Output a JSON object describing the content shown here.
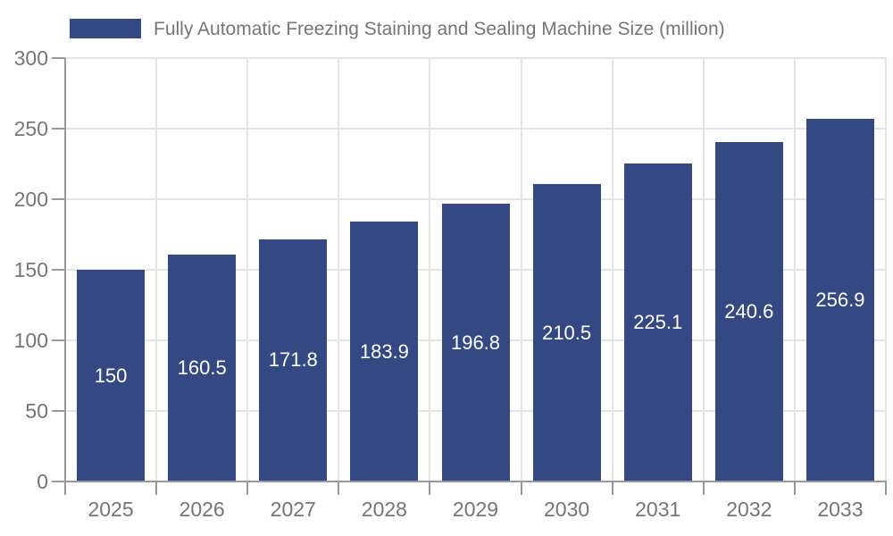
{
  "chart_data": {
    "type": "bar",
    "title": "",
    "legend": "Fully Automatic Freezing Staining and Sealing Machine Size (million)",
    "categories": [
      "2025",
      "2026",
      "2027",
      "2028",
      "2029",
      "2030",
      "2031",
      "2032",
      "2033"
    ],
    "values": [
      150,
      160.5,
      171.8,
      183.9,
      196.8,
      210.5,
      225.1,
      240.6,
      256.9
    ],
    "value_labels": [
      "150",
      "160.5",
      "171.8",
      "183.9",
      "196.8",
      "210.5",
      "225.1",
      "240.6",
      "256.9"
    ],
    "xlabel": "",
    "ylabel": "",
    "ylim": [
      0,
      300
    ],
    "y_ticks": [
      0,
      50,
      100,
      150,
      200,
      250,
      300
    ],
    "grid": true,
    "legend_position": "top-left",
    "colors": {
      "bar": "#344883",
      "bar_label": "#ffffff",
      "grid": "#e4e4e4",
      "axis": "#999999",
      "tick_label": "#757575",
      "legend_text": "#757575",
      "background": "#ffffff"
    }
  }
}
